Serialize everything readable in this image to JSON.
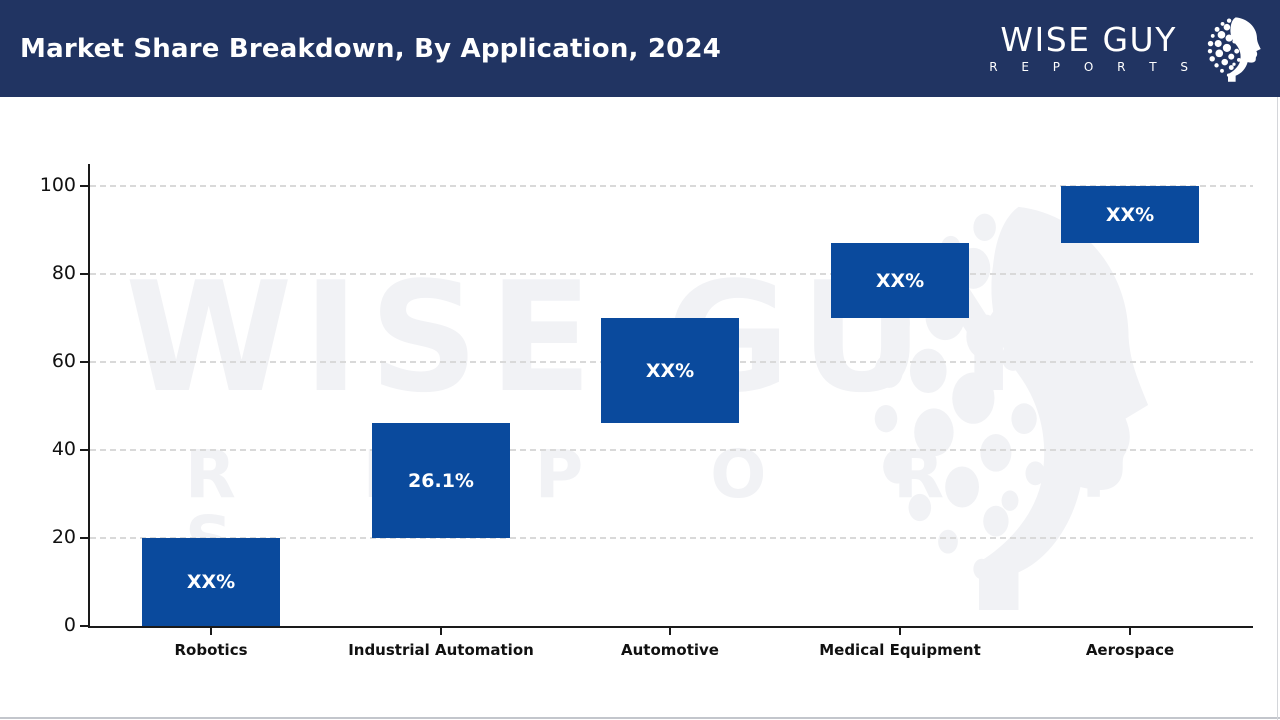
{
  "header": {
    "title": "Market Share Breakdown, By Application, 2024",
    "logo_name": "WISE GUY",
    "logo_sub": "R E P O R T S"
  },
  "watermark": {
    "line1": "WISE GUY",
    "line2": "R E P O R T S"
  },
  "colors": {
    "header_bg": "#213462",
    "bar": "#0a4a9d",
    "bar_label": "#ffffff",
    "grid": "#d9d9d9",
    "axis": "#1a1a1a",
    "tick_text": "#111111",
    "watermark": "#f1f2f5"
  },
  "chart_data": {
    "type": "bar",
    "subtype": "waterfall",
    "title": "Market Share Breakdown, By Application, 2024",
    "xlabel": "",
    "ylabel": "",
    "categories": [
      "Robotics",
      "Industrial Automation",
      "Automotive",
      "Medical Equipment",
      "Aerospace"
    ],
    "segments": [
      {
        "category": "Robotics",
        "start": 0,
        "end": 20,
        "label": "XX%"
      },
      {
        "category": "Industrial Automation",
        "start": 20,
        "end": 46.1,
        "label": "26.1%"
      },
      {
        "category": "Automotive",
        "start": 46.1,
        "end": 70,
        "label": "XX%"
      },
      {
        "category": "Medical Equipment",
        "start": 70,
        "end": 87,
        "label": "XX%"
      },
      {
        "category": "Aerospace",
        "start": 87,
        "end": 100,
        "label": "XX%"
      }
    ],
    "yticks": [
      0,
      20,
      40,
      60,
      80,
      100
    ],
    "ylim": [
      0,
      100
    ],
    "grid": "horizontal-dashed",
    "legend": null,
    "bar_color": "#0a4a9d",
    "value_label_position": "center-inside"
  }
}
